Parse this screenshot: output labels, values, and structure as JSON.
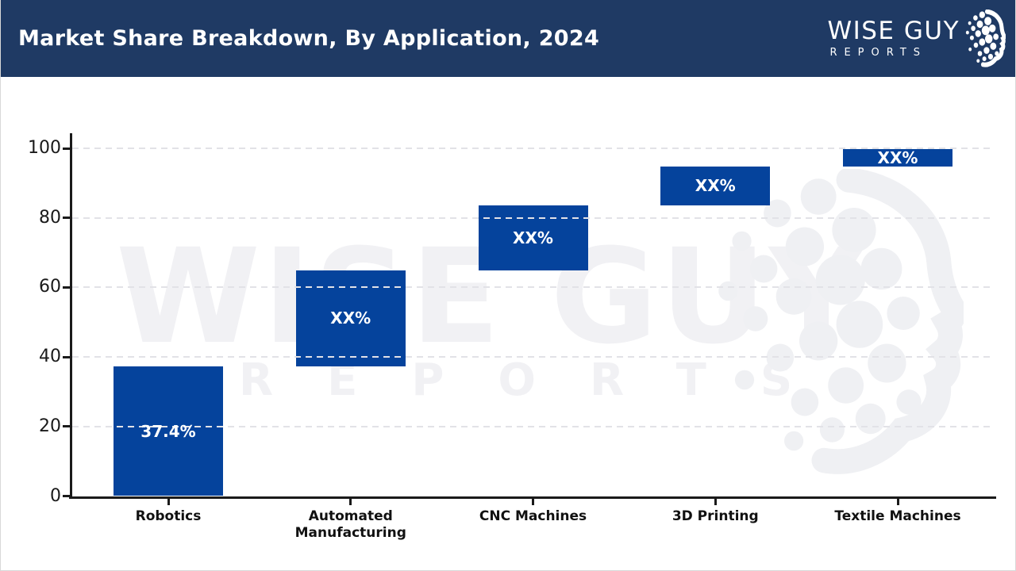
{
  "header": {
    "title": "Market Share Breakdown, By Application, 2024",
    "logo": {
      "brand_top": "WISE GUY",
      "brand_bottom": "REPORTS"
    }
  },
  "watermark": {
    "text_top": "WISE GUY",
    "text_bottom": "REPORTS"
  },
  "chart_data": {
    "type": "bar",
    "variant": "waterfall",
    "title": "Market Share Breakdown, By Application, 2024",
    "categories": [
      "Robotics",
      "Automated Manufacturing",
      "CNC Machines",
      "3D Printing",
      "Textile Machines"
    ],
    "segments": [
      {
        "category": "Robotics",
        "start": 0,
        "end": 37.4,
        "value": 37.4,
        "label": "37.4%"
      },
      {
        "category": "Automated Manufacturing",
        "start": 37.4,
        "end": 64.9,
        "value": 27.5,
        "label": "XX%"
      },
      {
        "category": "CNC Machines",
        "start": 64.9,
        "end": 83.6,
        "value": 18.7,
        "label": "XX%"
      },
      {
        "category": "3D Printing",
        "start": 83.6,
        "end": 94.8,
        "value": 11.2,
        "label": "XX%"
      },
      {
        "category": "Textile Machines",
        "start": 94.8,
        "end": 99.8,
        "value": 5.0,
        "label": "XX%"
      }
    ],
    "yticks": [
      0,
      20,
      40,
      60,
      80,
      100
    ],
    "ylim": [
      0,
      104
    ],
    "xlabel": "",
    "ylabel": "",
    "grid": "horizontal-dashed-above-bars",
    "legend": "none",
    "bar_color": "#05439c",
    "bar_label_color": "#ffffff"
  },
  "colors": {
    "header_bg": "#1f3a64",
    "bar": "#05439c",
    "grid": "#e2e2e7",
    "axis": "#1a1a1a",
    "watermark": "#f1f1f4",
    "page_border": "#d9d9d9"
  }
}
